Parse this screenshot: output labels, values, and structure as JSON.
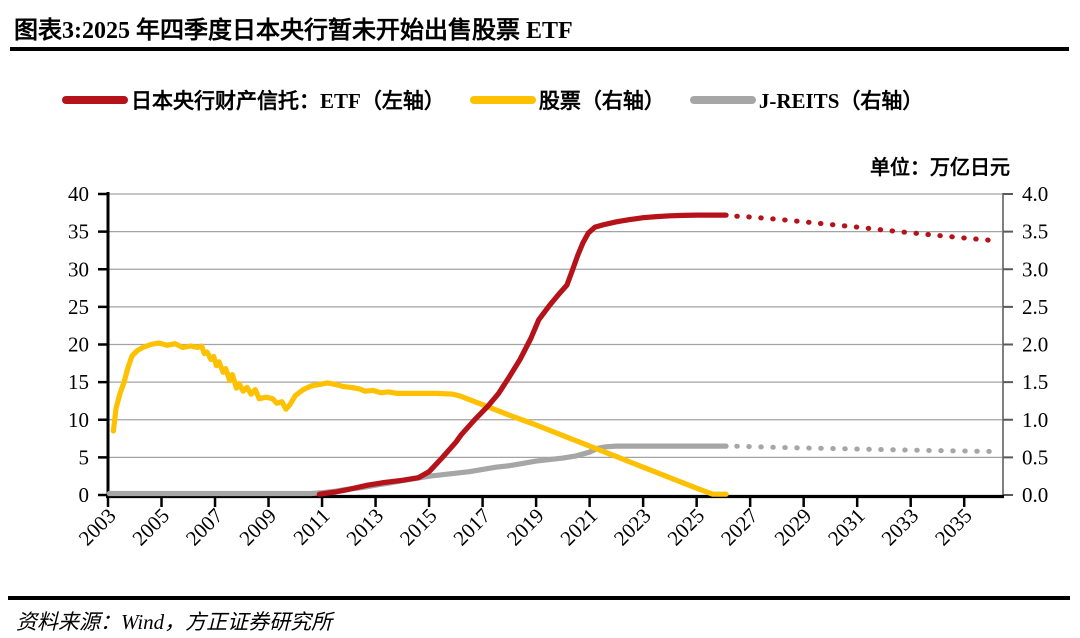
{
  "page": {
    "title": "图表3:2025 年四季度日本央行暂未开始出售股票 ETF",
    "source": "资料来源：Wind，方正证券研究所"
  },
  "legend": [
    {
      "label": "日本央行财产信托：ETF（左轴）",
      "color": "#b5121a"
    },
    {
      "label": "股票（右轴）",
      "color": "#fdc101"
    },
    {
      "label": "J-REITS（右轴）",
      "color": "#a6a6a6"
    }
  ],
  "chart_data": {
    "type": "line",
    "title": "图表3:2025 年四季度日本央行暂未开始出售股票 ETF",
    "unit_label": "单位：万亿日元",
    "grid": true,
    "legend_position": "top",
    "left_axis": {
      "range": [
        0,
        40
      ],
      "ticks": [
        0,
        5,
        10,
        15,
        20,
        25,
        30,
        35,
        40
      ]
    },
    "right_axis": {
      "range": [
        0,
        4
      ],
      "ticks": [
        "0.0",
        "0.5",
        "1.0",
        "1.5",
        "2.0",
        "2.5",
        "3.0",
        "3.5",
        "4.0"
      ]
    },
    "x_axis": {
      "range": [
        2003,
        2036.45
      ],
      "ticks": [
        2003,
        2005,
        2007,
        2009,
        2011,
        2013,
        2015,
        2017,
        2019,
        2021,
        2023,
        2025,
        2027,
        2029,
        2031,
        2033,
        2035
      ]
    },
    "series": [
      {
        "legend": "J-REITS（右轴）",
        "segment": "actual",
        "axis": "right",
        "color": "#a6a6a6",
        "style": "solid",
        "points": [
          [
            2003.05,
            0.02
          ],
          [
            2010.6,
            0.02
          ],
          [
            2011.0,
            0.03
          ],
          [
            2011.5,
            0.05
          ],
          [
            2012.0,
            0.08
          ],
          [
            2012.5,
            0.1
          ],
          [
            2013.0,
            0.13
          ],
          [
            2013.5,
            0.16
          ],
          [
            2014.0,
            0.19
          ],
          [
            2014.5,
            0.22
          ],
          [
            2015.0,
            0.25
          ],
          [
            2015.5,
            0.27
          ],
          [
            2016.0,
            0.29
          ],
          [
            2016.5,
            0.31
          ],
          [
            2017.0,
            0.34
          ],
          [
            2017.5,
            0.37
          ],
          [
            2018.0,
            0.39
          ],
          [
            2018.5,
            0.42
          ],
          [
            2019.0,
            0.45
          ],
          [
            2019.5,
            0.47
          ],
          [
            2020.0,
            0.49
          ],
          [
            2020.5,
            0.52
          ],
          [
            2021.0,
            0.57
          ],
          [
            2021.3,
            0.62
          ],
          [
            2021.6,
            0.64
          ],
          [
            2022.0,
            0.65
          ],
          [
            2026.1,
            0.65
          ]
        ]
      },
      {
        "legend": "J-REITS（右轴）",
        "segment": "forecast",
        "axis": "right",
        "color": "#a6a6a6",
        "style": "dotted",
        "points": [
          [
            2026.5,
            0.648
          ],
          [
            2028,
            0.633
          ],
          [
            2030,
            0.618
          ],
          [
            2032,
            0.603
          ],
          [
            2034,
            0.59
          ],
          [
            2036.15,
            0.578
          ]
        ]
      },
      {
        "legend": "股票（右轴）",
        "segment": "actual",
        "axis": "right",
        "color": "#fdc101",
        "style": "solid",
        "points": [
          [
            2003.2,
            0.85
          ],
          [
            2003.3,
            1.15
          ],
          [
            2003.45,
            1.35
          ],
          [
            2003.6,
            1.5
          ],
          [
            2003.75,
            1.7
          ],
          [
            2003.9,
            1.85
          ],
          [
            2004.1,
            1.92
          ],
          [
            2004.3,
            1.96
          ],
          [
            2004.6,
            2.0
          ],
          [
            2004.9,
            2.02
          ],
          [
            2005.2,
            1.99
          ],
          [
            2005.5,
            2.01
          ],
          [
            2005.8,
            1.96
          ],
          [
            2006.1,
            1.98
          ],
          [
            2006.35,
            1.96
          ],
          [
            2006.5,
            1.98
          ],
          [
            2006.6,
            1.88
          ],
          [
            2006.7,
            1.9
          ],
          [
            2006.85,
            1.8
          ],
          [
            2006.95,
            1.84
          ],
          [
            2007.05,
            1.72
          ],
          [
            2007.15,
            1.77
          ],
          [
            2007.3,
            1.63
          ],
          [
            2007.4,
            1.68
          ],
          [
            2007.55,
            1.52
          ],
          [
            2007.65,
            1.6
          ],
          [
            2007.8,
            1.42
          ],
          [
            2007.9,
            1.48
          ],
          [
            2008.05,
            1.38
          ],
          [
            2008.2,
            1.43
          ],
          [
            2008.35,
            1.34
          ],
          [
            2008.5,
            1.4
          ],
          [
            2008.65,
            1.28
          ],
          [
            2008.9,
            1.3
          ],
          [
            2009.15,
            1.28
          ],
          [
            2009.3,
            1.22
          ],
          [
            2009.5,
            1.24
          ],
          [
            2009.65,
            1.14
          ],
          [
            2009.8,
            1.2
          ],
          [
            2010.0,
            1.32
          ],
          [
            2010.3,
            1.4
          ],
          [
            2010.6,
            1.45
          ],
          [
            2010.9,
            1.47
          ],
          [
            2011.2,
            1.49
          ],
          [
            2011.5,
            1.47
          ],
          [
            2011.8,
            1.44
          ],
          [
            2012.1,
            1.43
          ],
          [
            2012.4,
            1.41
          ],
          [
            2012.6,
            1.38
          ],
          [
            2012.9,
            1.39
          ],
          [
            2013.2,
            1.36
          ],
          [
            2013.5,
            1.37
          ],
          [
            2013.8,
            1.35
          ],
          [
            2014.5,
            1.35
          ],
          [
            2015.3,
            1.35
          ],
          [
            2015.9,
            1.34
          ],
          [
            2016.2,
            1.31
          ],
          [
            2017.0,
            1.2
          ],
          [
            2018.0,
            1.06
          ],
          [
            2019.0,
            0.93
          ],
          [
            2020.0,
            0.79
          ],
          [
            2021.0,
            0.65
          ],
          [
            2022.0,
            0.51
          ],
          [
            2023.0,
            0.37
          ],
          [
            2024.0,
            0.23
          ],
          [
            2025.0,
            0.09
          ],
          [
            2025.6,
            0.01
          ],
          [
            2026.1,
            0.01
          ]
        ]
      },
      {
        "legend": "日本央行财产信托：ETF（左轴）",
        "segment": "actual",
        "axis": "left",
        "color": "#b5121a",
        "style": "solid",
        "points": [
          [
            2010.9,
            0.1
          ],
          [
            2011.5,
            0.4
          ],
          [
            2012.0,
            0.75
          ],
          [
            2012.7,
            1.3
          ],
          [
            2013.3,
            1.65
          ],
          [
            2014.0,
            1.95
          ],
          [
            2014.6,
            2.3
          ],
          [
            2015.0,
            3.1
          ],
          [
            2015.5,
            5.0
          ],
          [
            2016.0,
            7.0
          ],
          [
            2016.2,
            8.0
          ],
          [
            2016.7,
            10.0
          ],
          [
            2017.2,
            11.8
          ],
          [
            2017.6,
            13.5
          ],
          [
            2018.0,
            15.7
          ],
          [
            2018.4,
            18.0
          ],
          [
            2018.8,
            20.8
          ],
          [
            2019.1,
            23.3
          ],
          [
            2019.5,
            25.2
          ],
          [
            2019.9,
            26.9
          ],
          [
            2020.15,
            27.9
          ],
          [
            2020.35,
            29.8
          ],
          [
            2020.55,
            31.8
          ],
          [
            2020.75,
            33.5
          ],
          [
            2020.95,
            34.8
          ],
          [
            2021.2,
            35.6
          ],
          [
            2021.5,
            35.9
          ],
          [
            2022.0,
            36.3
          ],
          [
            2022.5,
            36.6
          ],
          [
            2023.0,
            36.85
          ],
          [
            2023.5,
            37.0
          ],
          [
            2024.0,
            37.1
          ],
          [
            2024.5,
            37.15
          ],
          [
            2025.0,
            37.2
          ],
          [
            2026.1,
            37.2
          ]
        ]
      },
      {
        "legend": "日本央行财产信托：ETF（左轴）",
        "segment": "forecast",
        "axis": "left",
        "color": "#b5121a",
        "style": "dotted",
        "points": [
          [
            2026.5,
            37.05
          ],
          [
            2027,
            36.95
          ],
          [
            2028,
            36.65
          ],
          [
            2029,
            36.3
          ],
          [
            2030,
            35.95
          ],
          [
            2031,
            35.6
          ],
          [
            2032,
            35.2
          ],
          [
            2033,
            34.85
          ],
          [
            2034,
            34.5
          ],
          [
            2035,
            34.15
          ],
          [
            2036.15,
            33.8
          ]
        ]
      }
    ]
  }
}
